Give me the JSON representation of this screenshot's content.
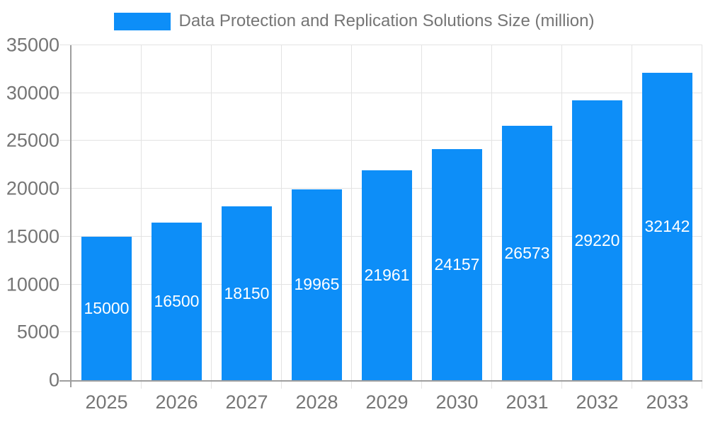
{
  "chart_data": {
    "type": "bar",
    "title": "Data Protection and Replication Solutions Size (million)",
    "legend_label": "Data Protection and Replication Solutions Size (million)",
    "categories": [
      "2025",
      "2026",
      "2027",
      "2028",
      "2029",
      "2030",
      "2031",
      "2032",
      "2033"
    ],
    "values": [
      15000,
      16500,
      18150,
      19965,
      21961,
      24157,
      26573,
      29220,
      32142
    ],
    "bar_labels": [
      "15000",
      "16500",
      "18150",
      "19965",
      "21961",
      "24157",
      "26573",
      "29220",
      "32142"
    ],
    "xlabel": "",
    "ylabel": "",
    "ylim": [
      0,
      35000
    ],
    "ytick_step": 5000,
    "yticks": [
      "0",
      "5000",
      "10000",
      "15000",
      "20000",
      "25000",
      "30000",
      "35000"
    ],
    "grid": true,
    "legend_position": "top-center",
    "colors": {
      "bar": "#0d8ef8",
      "bar_label_text": "#ffffff",
      "axis_text": "#757575",
      "legend_text": "#757575",
      "axis_line": "#9e9e9e",
      "grid_line": "#e3e3e3",
      "background": "#ffffff"
    }
  }
}
